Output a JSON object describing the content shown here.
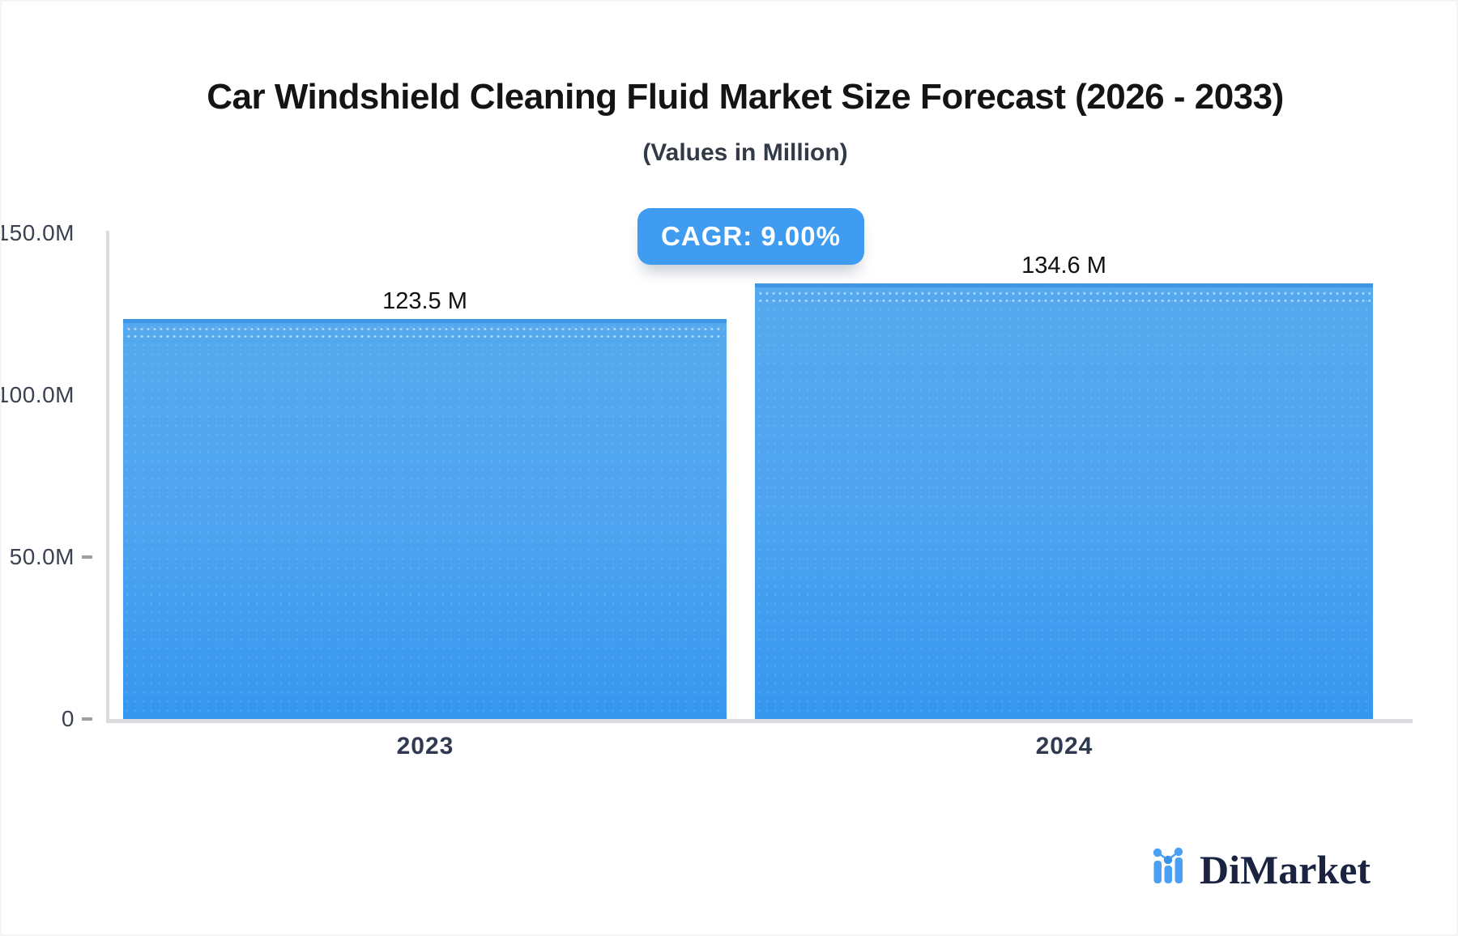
{
  "header": {
    "title": "Car Windshield Cleaning Fluid Market Size Forecast (2026 - 2033)",
    "subtitle": "(Values in Million)"
  },
  "badge": {
    "label": "CAGR: 9.00%"
  },
  "chart_data": {
    "type": "bar",
    "title": "Car Windshield Cleaning Fluid Market Size Forecast (2026 - 2033)",
    "subtitle": "(Values in Million)",
    "categories": [
      "2023",
      "2024"
    ],
    "values": [
      123.5,
      134.6
    ],
    "value_labels": [
      "123.5 M",
      "134.6 M"
    ],
    "cagr": "9.00%",
    "y_axis": {
      "min": 0,
      "max": 150,
      "ticks": [
        {
          "label": "150.0M",
          "value": 150,
          "tick_mark": false
        },
        {
          "label": "100.0M",
          "value": 100,
          "tick_mark": false
        },
        {
          "label": "50.0M",
          "value": 50,
          "tick_mark": true
        },
        {
          "label": "0",
          "value": 0,
          "tick_mark": true
        }
      ]
    },
    "grid": false,
    "legend": false
  },
  "logo": {
    "text": "DiMarket"
  },
  "colors": {
    "bar_top": "#55a9ee",
    "bar_bottom": "#3697ef",
    "bar_edge": "#3e96e5",
    "badge_bg": "#3f9cf1",
    "axis_line": "#d9dbdf",
    "text_dark": "#141414",
    "text_slate": "#2f3950",
    "logo_navy": "#1a2340",
    "logo_blue": "#4aa0f5"
  }
}
